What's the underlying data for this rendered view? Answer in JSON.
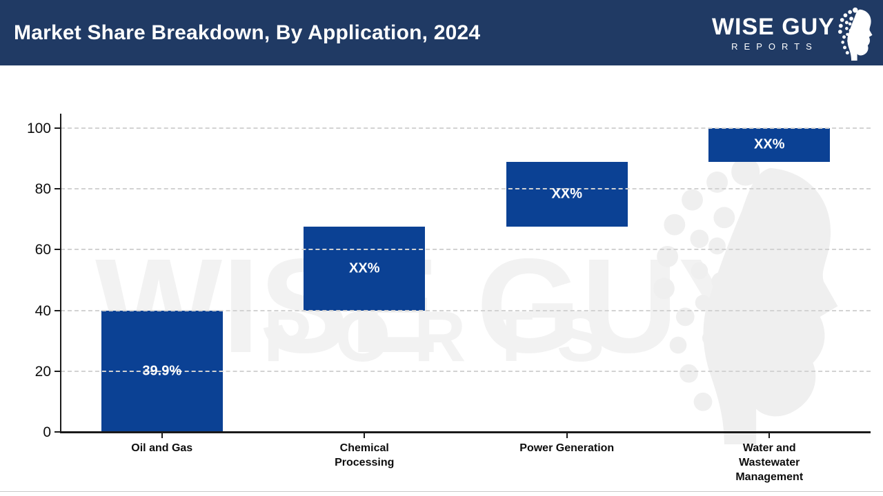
{
  "header": {
    "title": "Market Share Breakdown, By Application, 2024"
  },
  "logo": {
    "wordmark": "WISE GUY",
    "subtitle": "REPORTS",
    "face_icon": "dotted-head-profile"
  },
  "watermark": {
    "line1": "WISE GUY",
    "line2": "PORTS",
    "face_icon": "dotted-head-profile"
  },
  "colors": {
    "header_bg": "#203a64",
    "bar": "#0b4194",
    "axis": "#1a1a1a",
    "gridline": "#d2d2d2",
    "value_label": "#ffffff",
    "watermark": "#f2f2f2"
  },
  "chart_data": {
    "type": "bar",
    "subtype": "stacked-waterfall-percentage",
    "title": "Market Share Breakdown, By Application, 2024",
    "categories": [
      "Oil and Gas",
      "Chemical Processing",
      "Power Generation",
      "Water and Wastewater Management"
    ],
    "category_display_lines": [
      [
        "Oil and Gas"
      ],
      [
        "Chemical",
        "Processing"
      ],
      [
        "Power Generation"
      ],
      [
        "Water and",
        "Wastewater",
        "Management"
      ]
    ],
    "segments": [
      {
        "category": "Oil and Gas",
        "start": 0,
        "end": 39.9,
        "value_label": "39.9%"
      },
      {
        "category": "Chemical Processing",
        "start": 39.9,
        "end": 67.5,
        "value_label": "XX%"
      },
      {
        "category": "Power Generation",
        "start": 67.5,
        "end": 88.9,
        "value_label": "XX%"
      },
      {
        "category": "Water and Wastewater Management",
        "start": 88.9,
        "end": 100,
        "value_label": "XX%"
      }
    ],
    "y_ticks": [
      0,
      20,
      40,
      60,
      80,
      100
    ],
    "ylim": [
      0,
      100
    ],
    "xlabel": "",
    "ylabel": "",
    "grid": "dashed-horizontal",
    "legend": false,
    "bar_color": "#0b4194"
  }
}
